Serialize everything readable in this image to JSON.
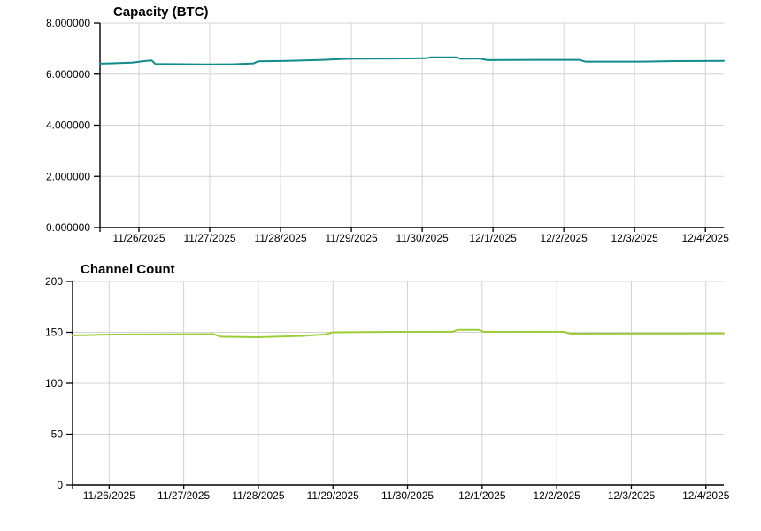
{
  "page": {
    "background_color": "#ffffff",
    "text_color": "#000000"
  },
  "chart_data": [
    {
      "type": "line",
      "title": "Capacity (BTC)",
      "xlabel": "",
      "ylabel": "",
      "legend": "none",
      "grid": true,
      "xlim": [
        -0.55,
        8.26
      ],
      "ylim": [
        0,
        8
      ],
      "x_ticks": [
        {
          "pos": 0,
          "label": "11/26/2025"
        },
        {
          "pos": 1,
          "label": "11/27/2025"
        },
        {
          "pos": 2,
          "label": "11/28/2025"
        },
        {
          "pos": 3,
          "label": "11/29/2025"
        },
        {
          "pos": 4,
          "label": "11/30/2025"
        },
        {
          "pos": 5,
          "label": "12/1/2025"
        },
        {
          "pos": 6,
          "label": "12/2/2025"
        },
        {
          "pos": 7,
          "label": "12/3/2025"
        },
        {
          "pos": 8,
          "label": "12/4/2025"
        }
      ],
      "y_ticks": [
        {
          "value": 8,
          "label": "8.000000"
        },
        {
          "value": 6,
          "label": "6.000000"
        },
        {
          "value": 4,
          "label": "4.000000"
        },
        {
          "value": 2,
          "label": "2.000000"
        },
        {
          "value": 0,
          "label": "0.000000"
        }
      ],
      "colors": {
        "grid": "#d3d3d3",
        "axis": "#000000",
        "labels": "#000000"
      },
      "series": [
        {
          "name": "Capacity (BTC)",
          "color": "#128b8c",
          "line_width": 2,
          "points": [
            [
              -0.55,
              6.41
            ],
            [
              -0.1,
              6.45
            ],
            [
              0.1,
              6.52
            ],
            [
              0.18,
              6.54
            ],
            [
              0.23,
              6.4
            ],
            [
              0.6,
              6.39
            ],
            [
              0.95,
              6.38
            ],
            [
              1.35,
              6.39
            ],
            [
              1.62,
              6.42
            ],
            [
              1.68,
              6.5
            ],
            [
              2.1,
              6.52
            ],
            [
              2.6,
              6.56
            ],
            [
              2.95,
              6.6
            ],
            [
              3.6,
              6.61
            ],
            [
              4.05,
              6.62
            ],
            [
              4.12,
              6.66
            ],
            [
              4.48,
              6.66
            ],
            [
              4.55,
              6.6
            ],
            [
              4.82,
              6.61
            ],
            [
              4.92,
              6.55
            ],
            [
              5.6,
              6.56
            ],
            [
              6.22,
              6.56
            ],
            [
              6.3,
              6.49
            ],
            [
              7.1,
              6.49
            ],
            [
              7.6,
              6.51
            ],
            [
              8.26,
              6.52
            ]
          ]
        }
      ]
    },
    {
      "type": "line",
      "title": "Channel Count",
      "xlabel": "",
      "ylabel": "",
      "legend": "none",
      "grid": true,
      "xlim": [
        -0.49,
        8.24
      ],
      "ylim": [
        0,
        200
      ],
      "x_ticks": [
        {
          "pos": 0,
          "label": "11/26/2025"
        },
        {
          "pos": 1,
          "label": "11/27/2025"
        },
        {
          "pos": 2,
          "label": "11/28/2025"
        },
        {
          "pos": 3,
          "label": "11/29/2025"
        },
        {
          "pos": 4,
          "label": "11/30/2025"
        },
        {
          "pos": 5,
          "label": "12/1/2025"
        },
        {
          "pos": 6,
          "label": "12/2/2025"
        },
        {
          "pos": 7,
          "label": "12/3/2025"
        },
        {
          "pos": 8,
          "label": "12/4/2025"
        }
      ],
      "y_ticks": [
        {
          "value": 200,
          "label": "200"
        },
        {
          "value": 150,
          "label": "150"
        },
        {
          "value": 100,
          "label": "100"
        },
        {
          "value": 50,
          "label": "50"
        },
        {
          "value": 0,
          "label": "0"
        }
      ],
      "colors": {
        "grid": "#d3d3d3",
        "axis": "#000000",
        "labels": "#000000"
      },
      "series": [
        {
          "name": "Channel Count",
          "color": "#9dce3a",
          "line_width": 2,
          "points": [
            [
              -0.49,
              147.0
            ],
            [
              0.0,
              147.8
            ],
            [
              0.7,
              148.1
            ],
            [
              1.4,
              148.3
            ],
            [
              1.5,
              145.7
            ],
            [
              2.0,
              145.2
            ],
            [
              2.6,
              146.5
            ],
            [
              2.9,
              148.0
            ],
            [
              3.0,
              150.0
            ],
            [
              3.8,
              150.4
            ],
            [
              4.6,
              150.5
            ],
            [
              4.68,
              152.4
            ],
            [
              4.95,
              152.4
            ],
            [
              5.03,
              150.4
            ],
            [
              6.1,
              150.5
            ],
            [
              6.18,
              148.7
            ],
            [
              7.2,
              148.8
            ],
            [
              8.24,
              148.9
            ]
          ]
        }
      ]
    }
  ]
}
